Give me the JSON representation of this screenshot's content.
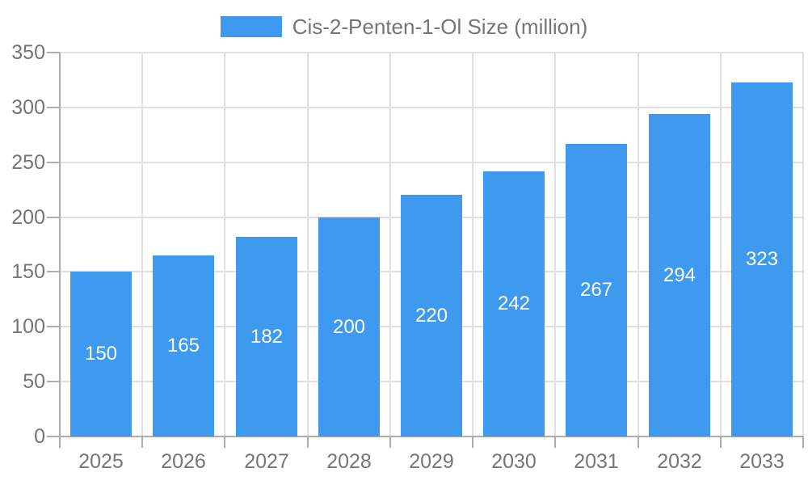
{
  "legend": {
    "label": "Cis-2-Penten-1-Ol Size (million)"
  },
  "chart_data": {
    "type": "bar",
    "title": "Cis-2-Penten-1-Ol Size (million)",
    "categories": [
      "2025",
      "2026",
      "2027",
      "2028",
      "2029",
      "2030",
      "2031",
      "2032",
      "2033"
    ],
    "values": [
      150,
      165,
      182,
      200,
      220,
      242,
      267,
      294,
      323
    ],
    "xlabel": "",
    "ylabel": "",
    "ylim": [
      0,
      350
    ],
    "yticks": [
      0,
      50,
      100,
      150,
      200,
      250,
      300,
      350
    ],
    "grid": true,
    "legend_position": "top-center",
    "bar_color": "#3d9aee",
    "bar_value_label_color": "#ffffff",
    "axis_text_color": "#757575",
    "grid_color": "#e0e0e0",
    "axis_line_color": "#adadad"
  }
}
